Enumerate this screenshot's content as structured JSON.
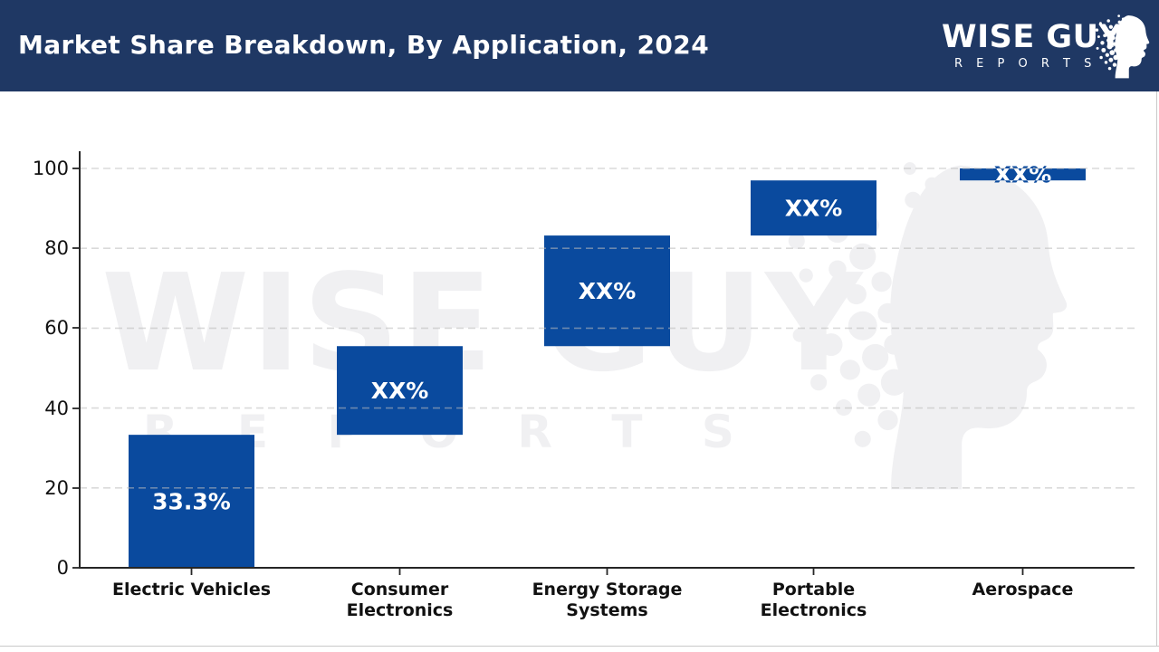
{
  "header": {
    "title": "Market Share Breakdown, By Application, 2024",
    "logo": {
      "line1": "WISE GUY",
      "line2": "R E P O R T S"
    }
  },
  "watermark": {
    "line1": "WISE GUY",
    "line2": "R E P O R T S"
  },
  "chart_data": {
    "type": "bar",
    "variant": "waterfall",
    "title": "Market Share Breakdown, By Application, 2024",
    "categories": [
      "Electric Vehicles",
      "Consumer Electronics",
      "Energy Storage Systems",
      "Portable Electronics",
      "Aerospace"
    ],
    "category_lines": [
      [
        "Electric Vehicles"
      ],
      [
        "Consumer",
        "Electronics"
      ],
      [
        "Energy Storage",
        "Systems"
      ],
      [
        "Portable",
        "Electronics"
      ],
      [
        "Aerospace"
      ]
    ],
    "segments": [
      {
        "category": "Electric Vehicles",
        "start": 0,
        "end": 33.3,
        "value": 33.3,
        "label": "33.3%"
      },
      {
        "category": "Consumer Electronics",
        "start": 33.3,
        "end": 55.5,
        "value": 22.2,
        "label": "XX%"
      },
      {
        "category": "Energy Storage Systems",
        "start": 55.5,
        "end": 83.2,
        "value": 27.7,
        "label": "XX%"
      },
      {
        "category": "Portable Electronics",
        "start": 83.2,
        "end": 97.0,
        "value": 13.8,
        "label": "XX%"
      },
      {
        "category": "Aerospace",
        "start": 97.0,
        "end": 100,
        "value": 3.0,
        "label": "XX%"
      }
    ],
    "xlabel": "",
    "ylabel": "",
    "yticks": [
      "0",
      "20",
      "40",
      "60",
      "80",
      "100"
    ],
    "ylim": [
      0,
      105
    ],
    "grid": "horizontal-dashed",
    "legend": "none",
    "bar_color": "#0a4a9e",
    "label_color": "#ffffff"
  },
  "colors": {
    "header_bg": "#1f3864",
    "bar": "#0a4a9e",
    "watermark": "#f0f0f2",
    "grid": "#bcbcbc",
    "axis": "#262626"
  }
}
